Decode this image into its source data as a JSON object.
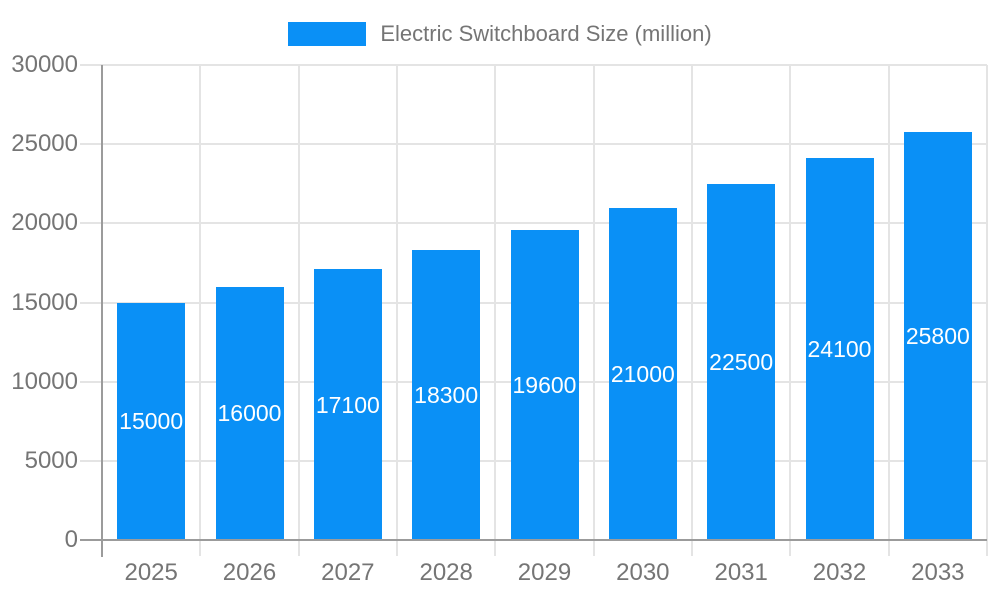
{
  "chart_data": {
    "type": "bar",
    "title": "Electric Switchboard Size (million)",
    "categories": [
      "2025",
      "2026",
      "2027",
      "2028",
      "2029",
      "2030",
      "2031",
      "2032",
      "2033"
    ],
    "values": [
      15000,
      16000,
      17100,
      18300,
      19600,
      21000,
      22500,
      24100,
      25800
    ],
    "bar_value_labels": [
      "15000",
      "16000",
      "17100",
      "18300",
      "19600",
      "21000",
      "22500",
      "24100",
      "25800"
    ],
    "xlabel": "",
    "ylabel": "",
    "ylim": [
      0,
      30000
    ],
    "y_tick_step": 5000,
    "y_tick_labels": [
      "0",
      "5000",
      "10000",
      "15000",
      "20000",
      "25000",
      "30000"
    ],
    "grid": true,
    "legend_position": "top",
    "colors": {
      "bar": "#0a90f6",
      "value_label": "#ffffff",
      "axis_text": "#757575",
      "grid": "#e4e4e4",
      "axis_line": "#9b9b9b",
      "background": "#ffffff"
    }
  }
}
